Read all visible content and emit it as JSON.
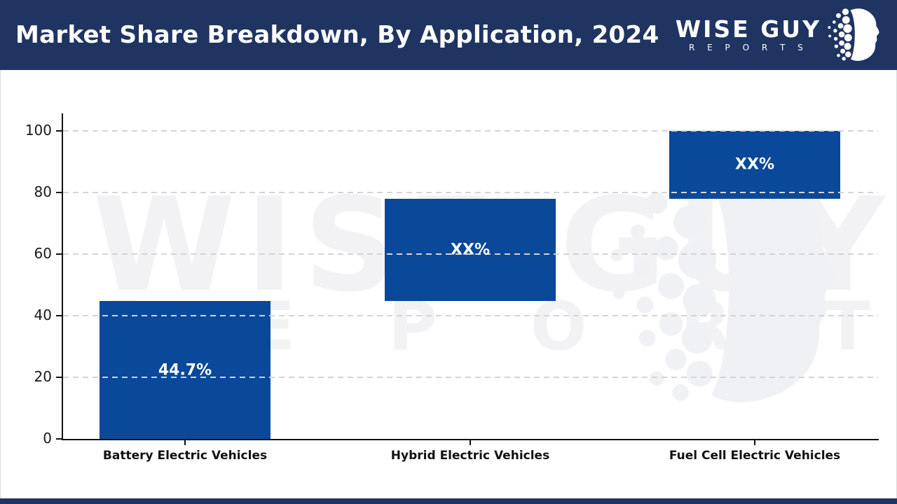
{
  "header": {
    "title": "Market Share Breakdown, By Application, 2024"
  },
  "logo": {
    "wordmark": "WISE GUY",
    "subtext": "R E P O R T S"
  },
  "watermark": {
    "wordmark": "WISE GUY",
    "subtext": "R E P O R T S"
  },
  "colors": {
    "header_bg": "#1f3461",
    "bar_blue": "#0a4899",
    "grid_gray": "#d4d4d4",
    "watermark_gray": "#f2f2f4",
    "axis_black": "#111111",
    "bar_value_text": "#ffffff"
  },
  "chart_data": {
    "type": "bar",
    "subtype": "waterfall",
    "title": "Market Share Breakdown, By Application, 2024",
    "xlabel": "",
    "ylabel": "",
    "ylim": [
      0,
      105
    ],
    "grid": "horizontal-dashed",
    "legend": "none",
    "yticks": [
      "0",
      "20",
      "40",
      "60",
      "80",
      "100"
    ],
    "ytick_values": [
      0,
      20,
      40,
      60,
      80,
      100
    ],
    "categories": [
      "Battery Electric Vehicles",
      "Hybrid Electric Vehicles",
      "Fuel Cell Electric Vehicles"
    ],
    "segments": [
      {
        "label": "44.7%",
        "start": 0,
        "end": 44.7
      },
      {
        "label": "XX%",
        "start": 44.7,
        "end": 78
      },
      {
        "label": "XX%",
        "start": 78,
        "end": 100
      }
    ]
  }
}
